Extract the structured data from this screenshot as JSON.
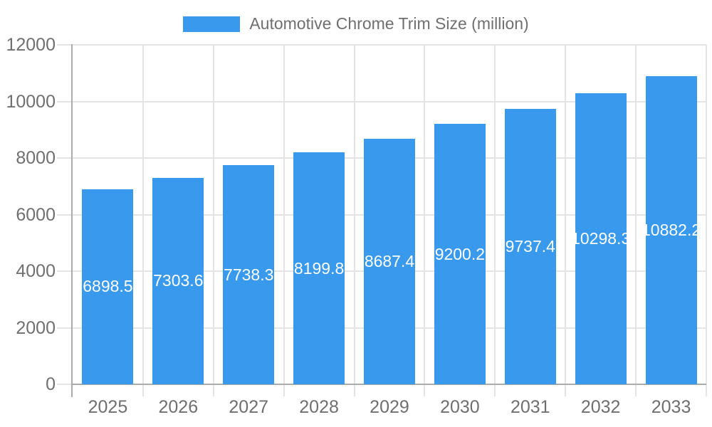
{
  "chart_data": {
    "type": "bar",
    "title": "Automotive Chrome Trim Size (million)",
    "categories": [
      "2025",
      "2026",
      "2027",
      "2028",
      "2029",
      "2030",
      "2031",
      "2032",
      "2033"
    ],
    "values": [
      6898.5,
      7303.6,
      7738.3,
      8199.8,
      8687.4,
      9200.2,
      9737.4,
      10298.3,
      10882.2
    ],
    "series_name": "Automotive Chrome Trim Size (million)",
    "xlabel": "",
    "ylabel": "",
    "ylim": [
      0,
      12000
    ],
    "ytick_step": 2000,
    "ytick_values": [
      0,
      2000,
      4000,
      6000,
      8000,
      10000,
      12000
    ],
    "ytick_labels": [
      "0",
      "2000",
      "4000",
      "6000",
      "8000",
      "10000",
      "12000"
    ],
    "grid": "both",
    "legend_position": "top-center",
    "colors": {
      "bar": "#3999EC",
      "bar_value_label": "#ffffff",
      "axis_text": "#6f6f6f",
      "grid_line": "#e4e4e4",
      "axis_line": "#ababab",
      "background": "#ffffff"
    }
  }
}
